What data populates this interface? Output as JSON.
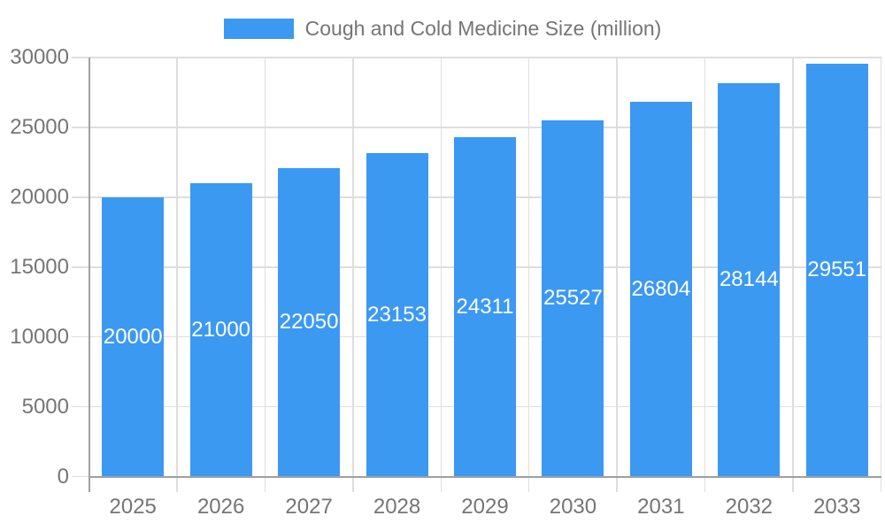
{
  "chart_data": {
    "type": "bar",
    "title": "Cough and Cold Medicine Size (million)",
    "series_name": "Cough and Cold Medicine Size (million)",
    "categories": [
      "2025",
      "2026",
      "2027",
      "2028",
      "2029",
      "2030",
      "2031",
      "2032",
      "2033"
    ],
    "values": [
      20000,
      21000,
      22050,
      23153,
      24311,
      25527,
      26804,
      28144,
      29551
    ],
    "xlabel": "",
    "ylabel": "",
    "ylim": [
      0,
      30000
    ],
    "ytick_step": 5000,
    "ytick_labels": [
      "0",
      "5000",
      "10000",
      "15000",
      "20000",
      "25000",
      "30000"
    ],
    "legend_position": "top",
    "grid": true,
    "value_labels": "inside-center",
    "colors": {
      "bar": "#3b99f2",
      "axis_text": "#757575",
      "gridline": "#dedede",
      "axis_line": "#a0a0a0",
      "value_label": "#ffffff",
      "background": "#ffffff"
    }
  }
}
